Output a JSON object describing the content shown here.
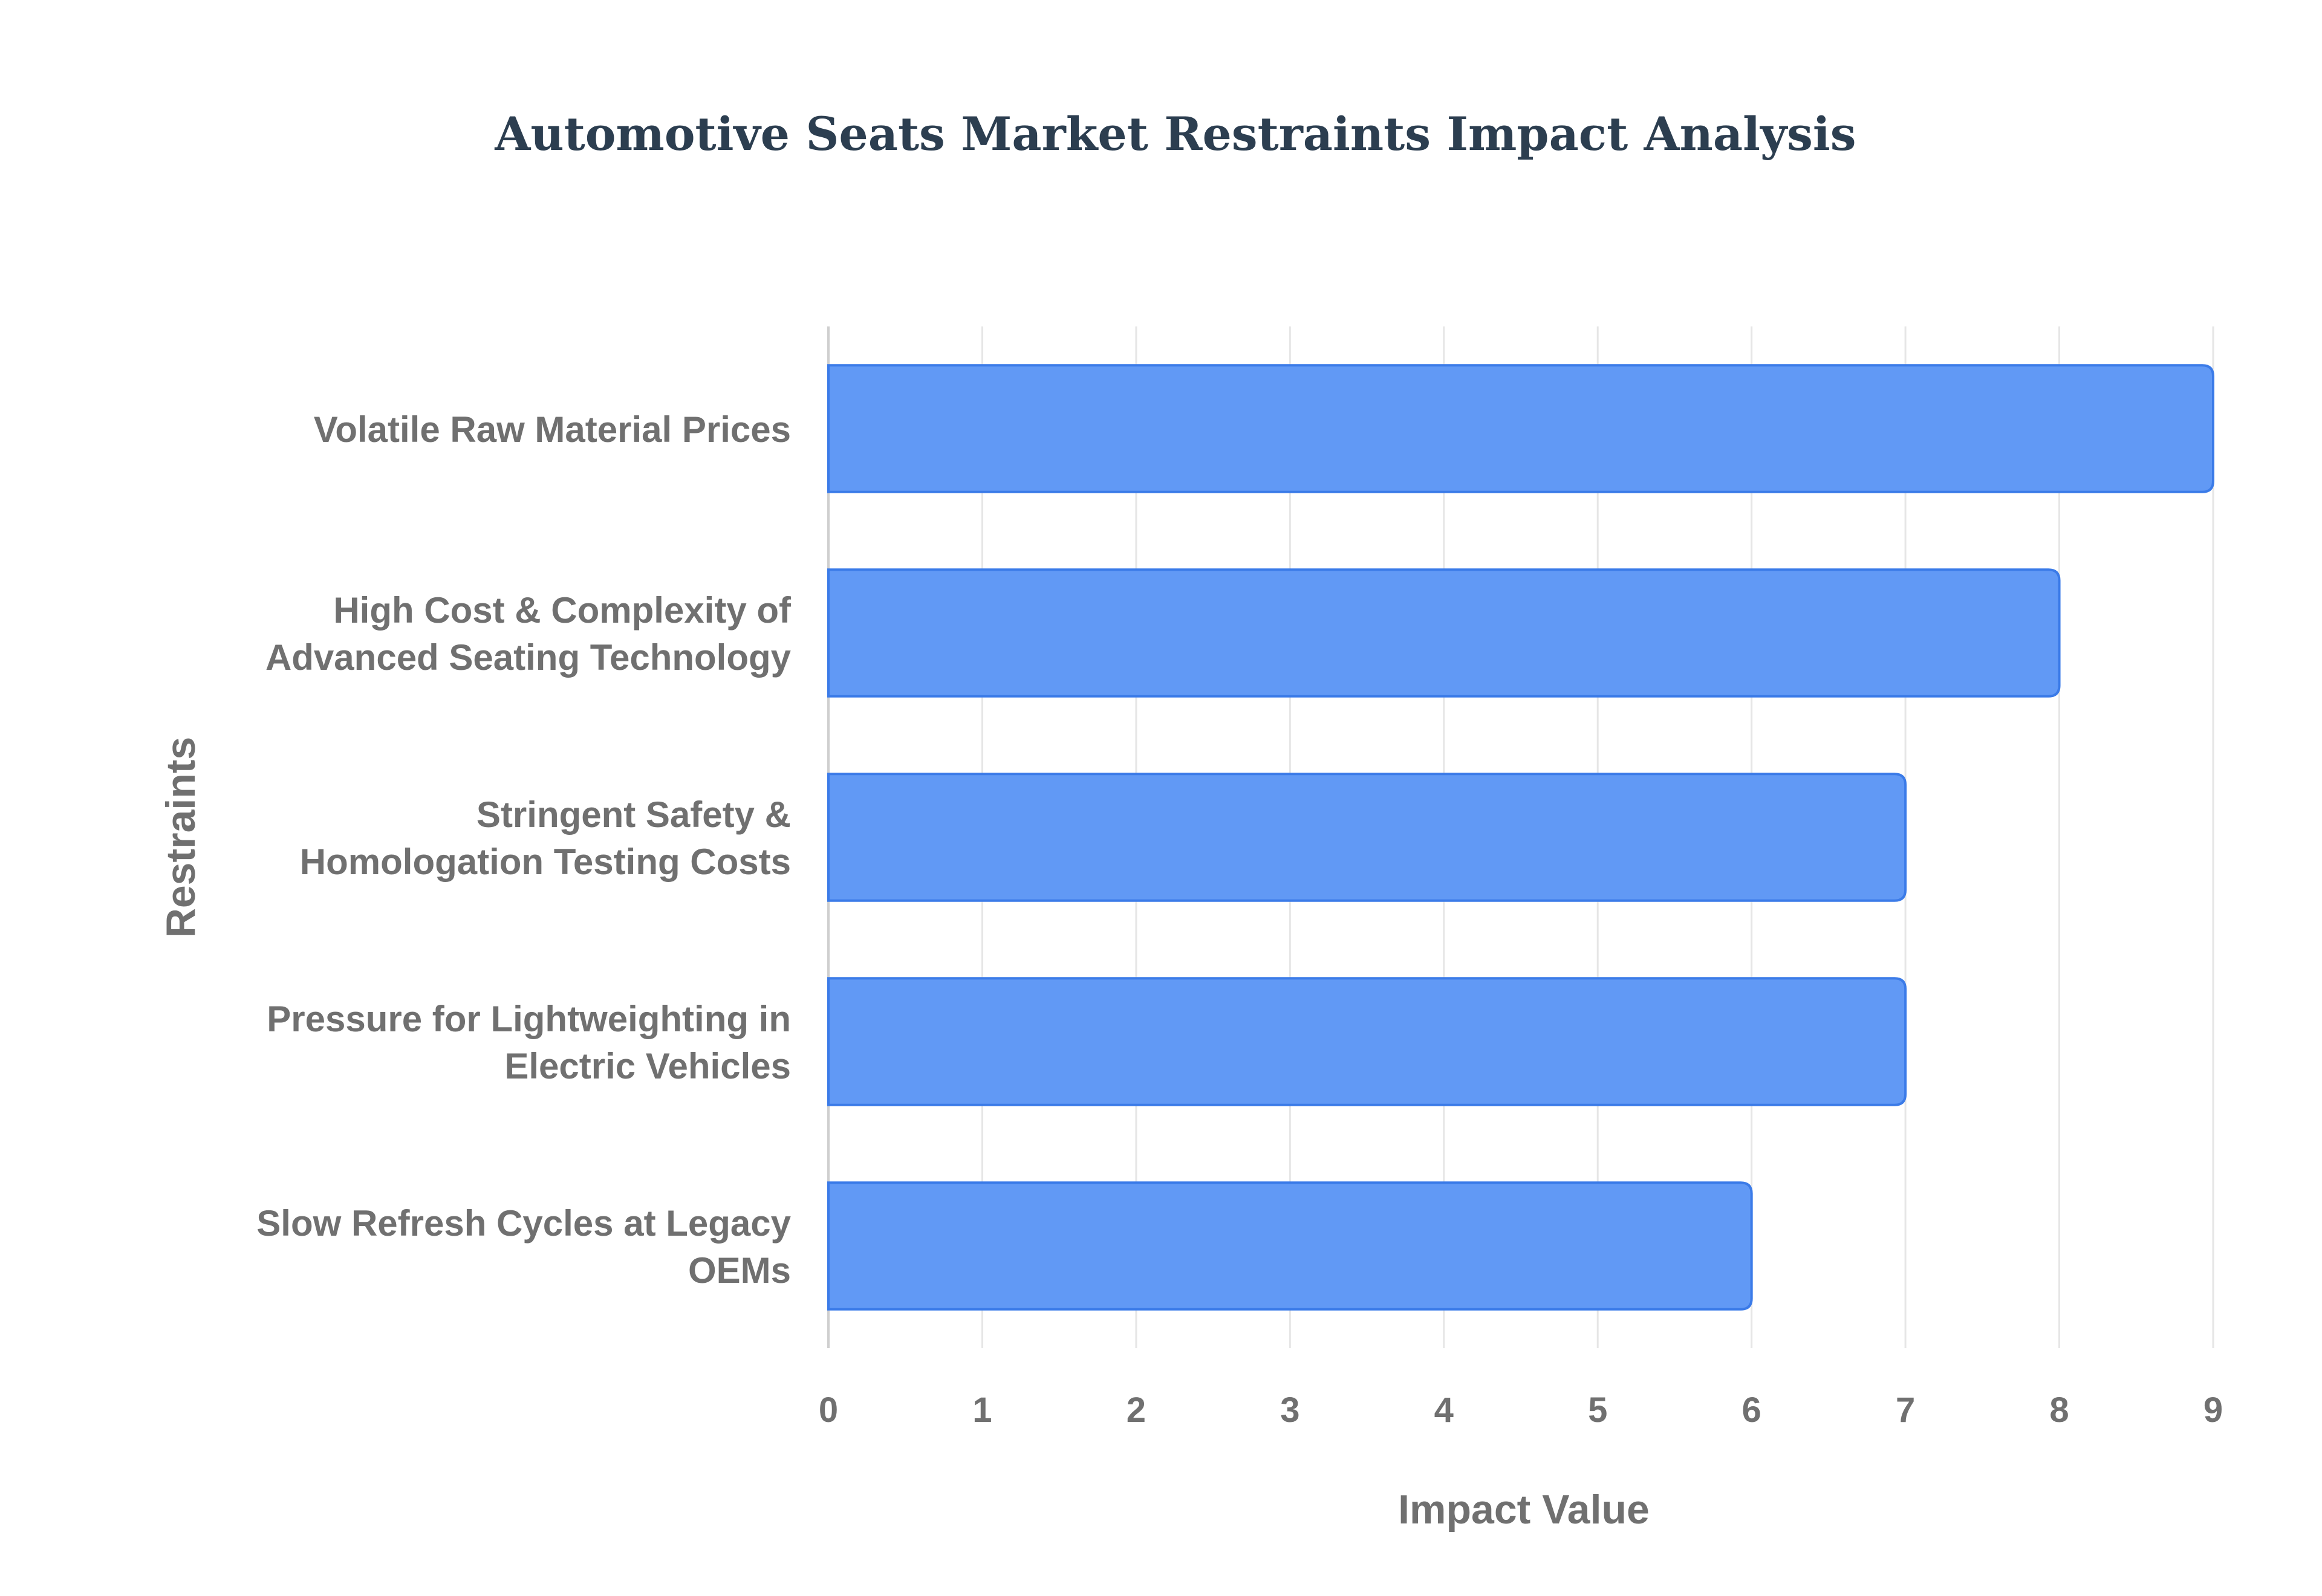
{
  "colors": {
    "bar_fill": "#6199f5",
    "bar_stroke": "#3b7be8",
    "title": "#2c3e50",
    "axis_text": "#707070",
    "grid": "#e6e6e6",
    "axis_line": "#cfcfcf"
  },
  "chart_data": {
    "type": "bar",
    "orientation": "horizontal",
    "title": "Automotive Seats Market Restraints Impact Analysis",
    "xlabel": "Impact Value",
    "ylabel": "Restraints",
    "categories": [
      [
        "Volatile Raw Material Prices"
      ],
      [
        "High Cost & Complexity of",
        "Advanced Seating Technology"
      ],
      [
        "Stringent Safety &",
        "Homologation Testing Costs"
      ],
      [
        "Pressure for Lightweighting in",
        "Electric Vehicles"
      ],
      [
        "Slow Refresh Cycles at Legacy",
        "OEMs"
      ]
    ],
    "values": [
      9,
      8,
      7,
      7,
      6
    ],
    "xlim": [
      0,
      9
    ],
    "xticks": [
      "0",
      "1",
      "2",
      "3",
      "4",
      "5",
      "6",
      "7",
      "8",
      "9"
    ],
    "grid": true,
    "legend": "none"
  }
}
